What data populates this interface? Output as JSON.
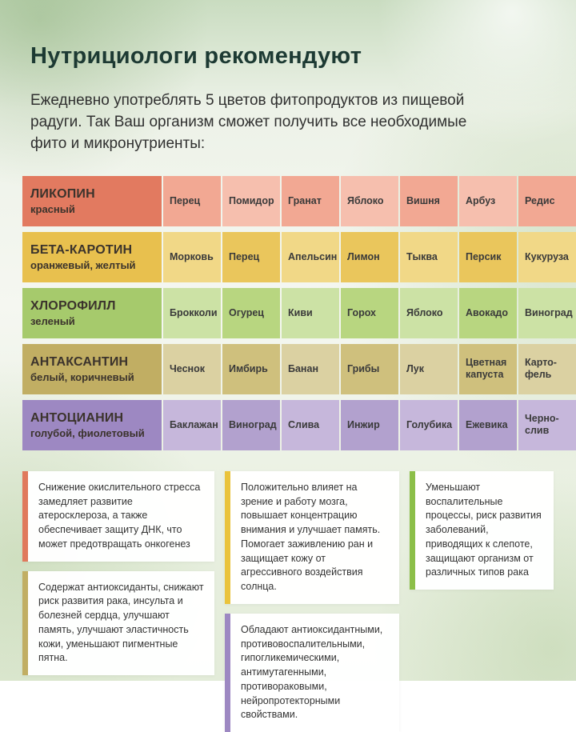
{
  "title": "Нутрициологи рекомендуют",
  "intro": "Ежедневно употреблять 5 цветов фитопродуктов из пищевой радуги. Так Ваш организм сможет получить все необходимые фито и микронутриенты:",
  "table": {
    "rows": [
      {
        "name": "ЛИКОПИН",
        "subtitle": "красный",
        "label_color": "#e27a60",
        "cell_colors": [
          "#f2a893",
          "#f6bfae",
          "#f2a893",
          "#f6bfae",
          "#f2a893",
          "#f6bfae",
          "#f2a893"
        ],
        "foods": [
          "Перец",
          "Помидор",
          "Гранат",
          "Яблоко",
          "Вишня",
          "Арбуз",
          "Редис"
        ]
      },
      {
        "name": "БЕТА-КАРОТИН",
        "subtitle": "оранжевый, желтый",
        "label_color": "#e8c04e",
        "cell_colors": [
          "#f1d887",
          "#eac65c",
          "#f1d887",
          "#eac65c",
          "#f1d887",
          "#eac65c",
          "#f1d887"
        ],
        "foods": [
          "Морковь",
          "Перец",
          "Апельсин",
          "Лимон",
          "Тыква",
          "Персик",
          "Кукуруза"
        ]
      },
      {
        "name": "ХЛОРОФИЛЛ",
        "subtitle": "зеленый",
        "label_color": "#a6ca6c",
        "cell_colors": [
          "#cce2a5",
          "#b8d680",
          "#cce2a5",
          "#b8d680",
          "#cce2a5",
          "#b8d680",
          "#cce2a5"
        ],
        "foods": [
          "Брокколи",
          "Огурец",
          "Киви",
          "Горох",
          "Яблоко",
          "Авокадо",
          "Виноград"
        ]
      },
      {
        "name": "АНТАКСАНТИН",
        "subtitle": "белый, коричневый",
        "label_color": "#c1ae63",
        "cell_colors": [
          "#dbd1a2",
          "#cfc07d",
          "#dbd1a2",
          "#cfc07d",
          "#dbd1a2",
          "#cfc07d",
          "#dbd1a2"
        ],
        "foods": [
          "Чеснок",
          "Имбирь",
          "Банан",
          "Грибы",
          "Лук",
          "Цветная капуста",
          "Карто-фель"
        ]
      },
      {
        "name": "АНТОЦИАНИН",
        "subtitle": "голубой, фиолетовый",
        "label_color": "#9d88c2",
        "cell_colors": [
          "#c6b7db",
          "#b2a1ce",
          "#c6b7db",
          "#b2a1ce",
          "#c6b7db",
          "#b2a1ce",
          "#c6b7db"
        ],
        "foods": [
          "Баклажан",
          "Виноград",
          "Слива",
          "Инжир",
          "Голубика",
          "Ежевика",
          "Черно-слив"
        ]
      }
    ]
  },
  "notes": [
    {
      "accent": "#e0795c",
      "text": "Снижение окислительного стресса замедляет развитие атеросклероза, а также обеспечивает защиту ДНК, что может предотвращать онкогенез"
    },
    {
      "accent": "#c1ae63",
      "text": "Содержат антиоксиданты, снижают риск развития рака, инсульта и болезней сердца, улучшают память, улучшают эластичность кожи, уменьшают пигментные пятна."
    },
    {
      "accent": "#eac33c",
      "text": "Положительно влияет на зрение и работу мозга, повышает концентрацию внимания и улучшает память. Помогает заживлению ран и защищает кожу от агрессивного воздействия солнца."
    },
    {
      "accent": "#8cbf49",
      "text": "Уменьшают воспалительные процессы, риск развития заболеваний, приводящих к слепоте, защищают организм от различных типов рака"
    },
    {
      "accent": "#9d88c2",
      "text": "Обладают антиоксидантными, противовоспалительными, гипогликемическими, антимутагенными, противораковыми, нейропротекторными свойствами."
    }
  ]
}
